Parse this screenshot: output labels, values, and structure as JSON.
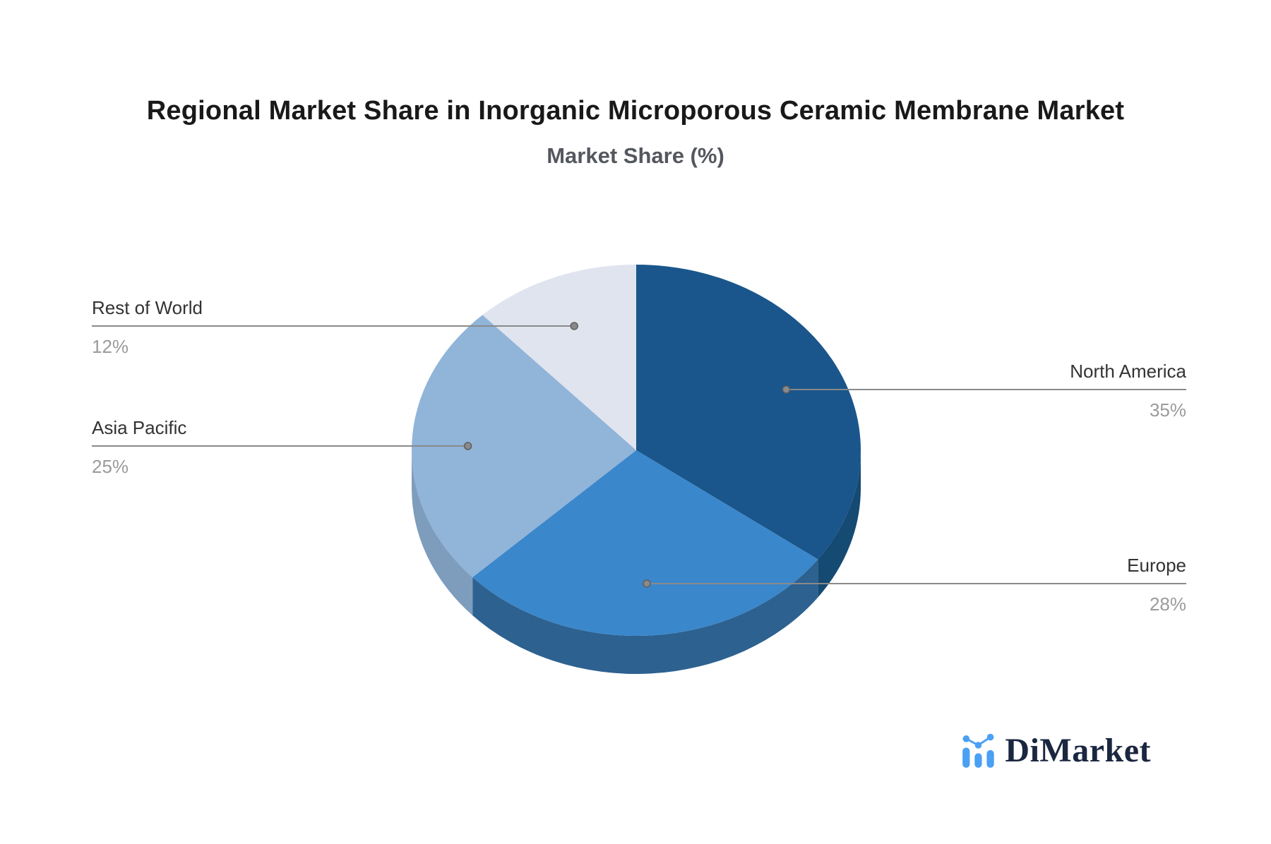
{
  "header": {
    "title": "Regional Market Share in Inorganic Microporous Ceramic Membrane Market",
    "subtitle": "Market Share (%)"
  },
  "chart_data": {
    "type": "pie",
    "style": "3d-pie",
    "title": "Regional Market Share in Inorganic Microporous Ceramic Membrane Market",
    "subtitle": "Market Share (%)",
    "unit": "%",
    "direction": "clockwise",
    "start_angle_deg": 0,
    "legend": "none, callout labels with leader lines",
    "slices": [
      {
        "label": "North America",
        "value": 35,
        "pct_label": "35%",
        "color": "#1A568B",
        "side_color": "#154A72",
        "label_side": "right"
      },
      {
        "label": "Europe",
        "value": 28,
        "pct_label": "28%",
        "color": "#3B87CB",
        "side_color": "#2D6190",
        "label_side": "right"
      },
      {
        "label": "Asia Pacific",
        "value": 25,
        "pct_label": "25%",
        "color": "#91B4D9",
        "side_color": "#7E9CBC",
        "label_side": "left"
      },
      {
        "label": "Rest of World",
        "value": 12,
        "pct_label": "12%",
        "color": "#DFE4EE",
        "side_color": "#B9C4D4",
        "label_side": "left"
      }
    ],
    "callout_line_color": "#8A8A8A",
    "callout_dot_color": "#8A8A8A",
    "label_color": "#333333",
    "value_color": "#9B9B9B",
    "background": "#FFFFFF"
  },
  "logo": {
    "text": "DiMarket",
    "icon": "bar-chart-icon",
    "icon_color": "#4AA0F4",
    "text_color": "#1B2740"
  }
}
